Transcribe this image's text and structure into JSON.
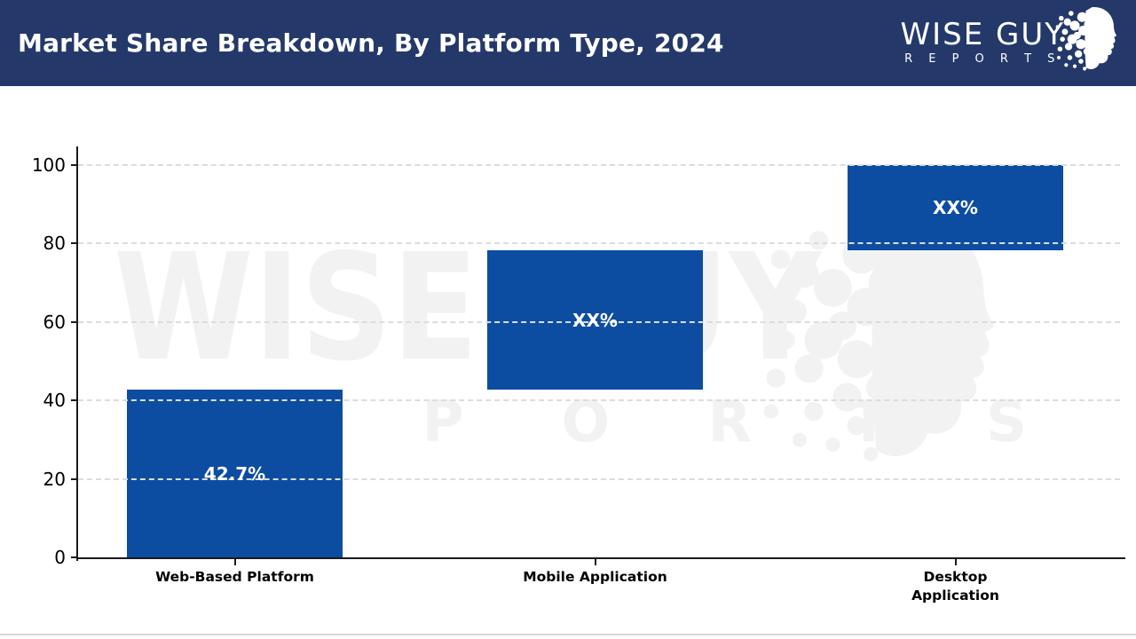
{
  "header": {
    "title": "Market Share Breakdown, By Platform Type, 2024",
    "logo": {
      "line1": "WISE GUY",
      "line2": "R E P O R T S"
    }
  },
  "watermark": {
    "line1": "WISE GUY",
    "line2": "R E P O R T S"
  },
  "colors": {
    "header_bg": "#24396a",
    "bar": "#0c4da2",
    "gridline": "#dcdcdc",
    "axis": "#1a1a1a",
    "bar_label": "#ffffff",
    "title_text": "#ffffff",
    "watermark": "#f2f2f2"
  },
  "chart_data": {
    "type": "bar",
    "subtype": "floating-waterfall",
    "title": "Market Share Breakdown, By Platform Type, 2024",
    "categories": [
      "Web-Based Platform",
      "Mobile Application",
      "Desktop\nApplication"
    ],
    "bars": [
      {
        "category": "Web-Based Platform",
        "start": 0,
        "end": 42.7,
        "label": "42.7%"
      },
      {
        "category": "Mobile Application",
        "start": 42.7,
        "end": 78.2,
        "label": "XX%"
      },
      {
        "category": "Desktop Application",
        "start": 78.2,
        "end": 100,
        "label": "XX%"
      }
    ],
    "xlabel": "",
    "ylabel": "",
    "yticks": [
      0,
      20,
      40,
      60,
      80,
      100
    ],
    "ylim": [
      0,
      104
    ],
    "grid": "horizontal-dashed",
    "legend": "none"
  }
}
